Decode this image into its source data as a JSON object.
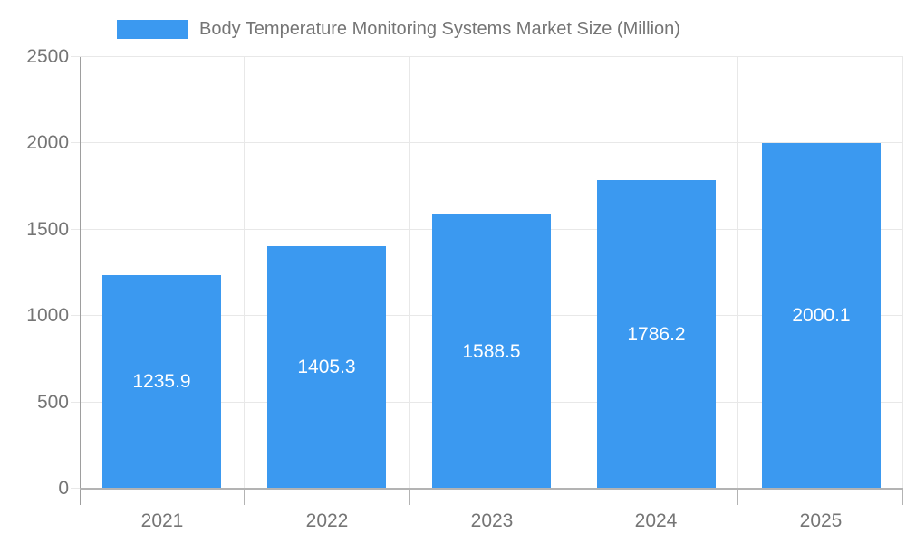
{
  "chart_data": {
    "type": "bar",
    "title": "Body Temperature Monitoring Systems Market Size (Million)",
    "legend_label": "Body Temperature Monitoring Systems Market Size (Million)",
    "legend_position": "top",
    "categories": [
      "2021",
      "2022",
      "2023",
      "2024",
      "2025"
    ],
    "values": [
      1235.9,
      1405.3,
      1588.5,
      1786.2,
      2000.1
    ],
    "xlabel": "",
    "ylabel": "",
    "ylim": [
      0,
      2500
    ],
    "yticks": [
      0,
      500,
      1000,
      1500,
      2000,
      2500
    ],
    "grid": true
  },
  "colors": {
    "background": "#ffffff",
    "bar": "#3b99f0",
    "axis_text": "#757575",
    "value_label_text": "#ffffff",
    "gridline": "#e8e8e8",
    "baseline": "#b3b3b3",
    "y_axis_line": "#9e9e9e",
    "tick_mark": "#b3b3b3"
  }
}
